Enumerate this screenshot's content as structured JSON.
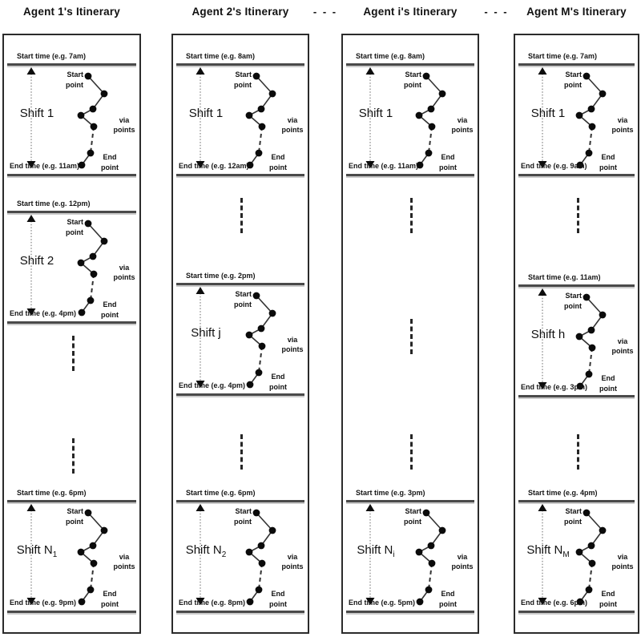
{
  "header": {
    "separator": "- - -"
  },
  "shift_labels": {
    "start_point": [
      "Start",
      "point"
    ],
    "via_points": [
      "via",
      "points"
    ],
    "end_point": [
      "End",
      "point"
    ]
  },
  "columns": [
    {
      "title": "Agent 1's Itinerary",
      "items": [
        {
          "type": "shift",
          "label": "Shift 1",
          "sub": "",
          "start_time": "Start time (e.g. 7am)",
          "end_time": "End time (e.g. 11am)"
        },
        {
          "type": "shift",
          "label": "Shift 2",
          "sub": "",
          "start_time": "Start time (e.g. 12pm)",
          "end_time": "End time (e.g. 4pm)"
        },
        {
          "type": "gap"
        },
        {
          "type": "gap"
        },
        {
          "type": "shift",
          "label": "Shift N",
          "sub": "1",
          "start_time": "Start time (e.g. 6pm)",
          "end_time": "End time (e.g. 9pm)"
        }
      ]
    },
    {
      "title": "Agent 2's Itinerary",
      "items": [
        {
          "type": "shift",
          "label": "Shift 1",
          "sub": "",
          "start_time": "Start time (e.g. 8am)",
          "end_time": "End time (e.g. 12am)"
        },
        {
          "type": "gap"
        },
        {
          "type": "shift",
          "label": "Shift j",
          "sub": "",
          "start_time": "Start time (e.g. 2pm)",
          "end_time": "End time (e.g. 4pm)"
        },
        {
          "type": "gap"
        },
        {
          "type": "shift",
          "label": "Shift N",
          "sub": "2",
          "start_time": "Start time (e.g. 6pm)",
          "end_time": "End time (e.g. 8pm)"
        }
      ]
    },
    {
      "title": "Agent i's Itinerary",
      "items": [
        {
          "type": "shift",
          "label": "Shift 1",
          "sub": "",
          "start_time": "Start time (e.g. 8am)",
          "end_time": "End time (e.g. 11am)"
        },
        {
          "type": "gap"
        },
        {
          "type": "gap"
        },
        {
          "type": "gap"
        },
        {
          "type": "shift",
          "label": "Shift N",
          "sub": "i",
          "start_time": "Start time (e.g. 3pm)",
          "end_time": "End time (e.g. 5pm)"
        }
      ]
    },
    {
      "title": "Agent M's Itinerary",
      "items": [
        {
          "type": "shift",
          "label": "Shift 1",
          "sub": "",
          "start_time": "Start time (e.g. 7am)",
          "end_time": "End time (e.g. 9am)"
        },
        {
          "type": "gap"
        },
        {
          "type": "shift",
          "label": "Shift h",
          "sub": "",
          "start_time": "Start time (e.g. 11am)",
          "end_time": "End time (e.g. 3pm)"
        },
        {
          "type": "gap"
        },
        {
          "type": "shift",
          "label": "Shift N",
          "sub": "M",
          "start_time": "Start time (e.g. 4pm)",
          "end_time": "End time (e.g. 6pm)"
        }
      ]
    }
  ]
}
